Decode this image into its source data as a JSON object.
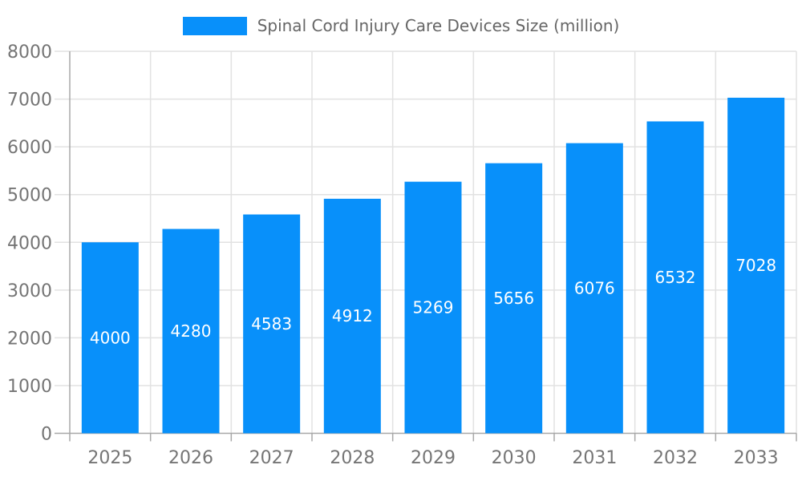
{
  "page": {
    "background": "#ffffff"
  },
  "legend": {
    "label": "Spinal Cord Injury Care Devices Size (million)",
    "swatch_color": "#0890fa"
  },
  "chart_data": {
    "type": "bar",
    "title": "",
    "legend_entries": [
      "Spinal Cord Injury Care Devices Size (million)"
    ],
    "legend_position": "top",
    "categories": [
      "2025",
      "2026",
      "2027",
      "2028",
      "2029",
      "2030",
      "2031",
      "2032",
      "2033"
    ],
    "series": [
      {
        "name": "Spinal Cord Injury Care Devices Size (million)",
        "values": [
          4000,
          4280,
          4583,
          4912,
          5269,
          5656,
          6076,
          6532,
          7028
        ]
      }
    ],
    "values": [
      4000,
      4280,
      4583,
      4912,
      5269,
      5656,
      6076,
      6532,
      7028
    ],
    "bar_labels": [
      4000,
      4280,
      4583,
      4912,
      5269,
      5656,
      6076,
      6532,
      7028
    ],
    "xlabel": "",
    "ylabel": "",
    "ylim": [
      0,
      8000
    ],
    "ytick_step": 1000,
    "yticks": [
      "0",
      "1000",
      "2000",
      "3000",
      "4000",
      "5000",
      "6000",
      "7000",
      "8000"
    ],
    "grid": true,
    "colors": {
      "bar": "#0890fa",
      "grid": "#e2e2e2",
      "axis": "#a8a8a8",
      "tick_text": "#757575",
      "bar_label": "#ffffff",
      "legend_text": "#666666"
    }
  }
}
